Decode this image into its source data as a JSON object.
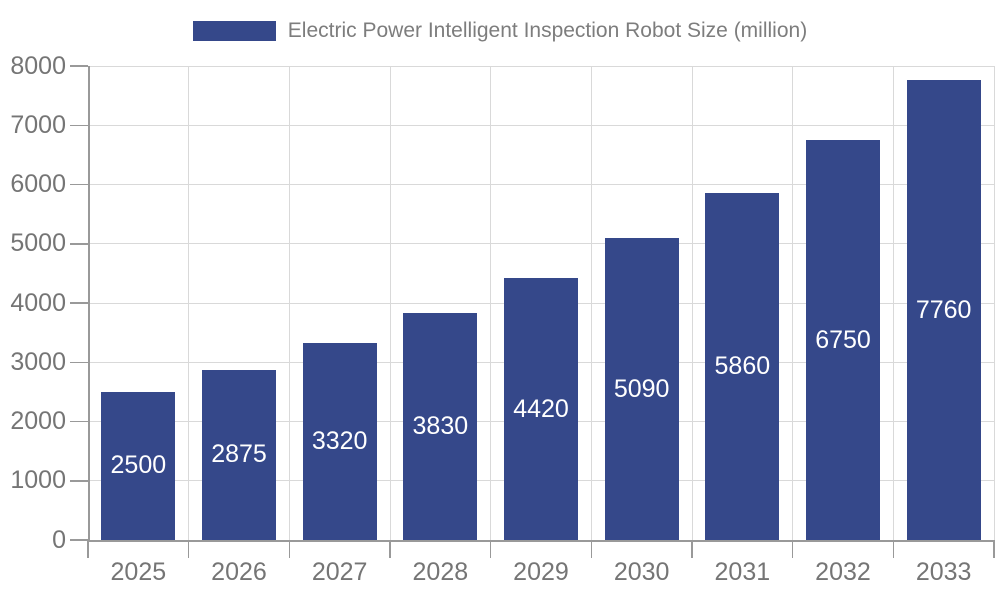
{
  "chart_data": {
    "type": "bar",
    "title": "",
    "legend": [
      "Electric Power Intelligent Inspection Robot Size (million)"
    ],
    "legend_position": "top-center",
    "categories": [
      "2025",
      "2026",
      "2027",
      "2028",
      "2029",
      "2030",
      "2031",
      "2032",
      "2033"
    ],
    "values": [
      2500,
      2875,
      3320,
      3830,
      4420,
      5090,
      5860,
      6750,
      7760
    ],
    "xlabel": "",
    "ylabel": "",
    "ylim": [
      0,
      8000
    ],
    "ytick_interval": 1000,
    "ytick_labels": [
      "0",
      "1000",
      "2000",
      "3000",
      "4000",
      "5000",
      "6000",
      "7000",
      "8000"
    ],
    "grid": true,
    "value_labels_inside_bars": true
  },
  "colors": {
    "bar": "#35488a",
    "grid": "#d9d9d9",
    "axis": "#999999",
    "tick_label": "#757575",
    "legend_text": "#7d7d7d",
    "value_label": "#ffffff",
    "background": "#ffffff"
  }
}
